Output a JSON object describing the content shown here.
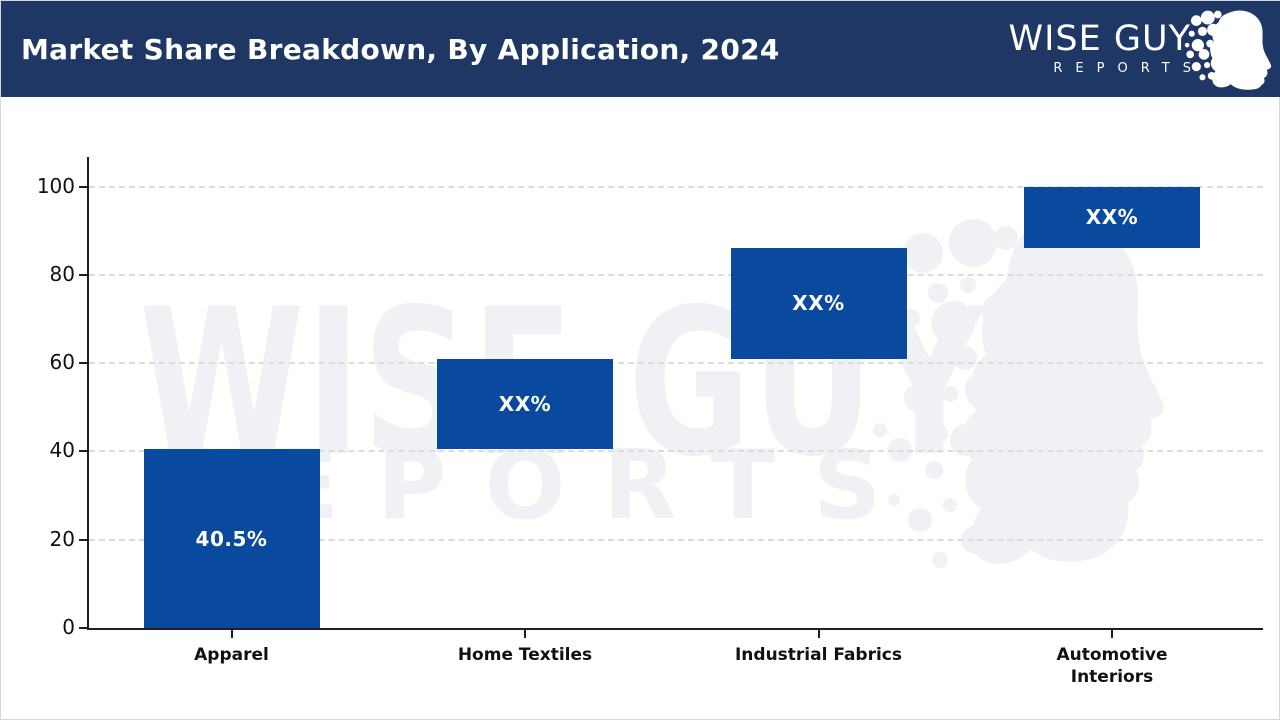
{
  "header": {
    "title": "Market Share Breakdown, By Application, 2024",
    "logo": {
      "brand_line1": "WISE GUY",
      "brand_line2": "REPORTS",
      "head_icon": "dotted-face-profile"
    }
  },
  "watermark": {
    "line1": "WISE GUY",
    "line2": "REPORTS",
    "head_icon": "dotted-face-profile"
  },
  "chart_data": {
    "type": "bar",
    "variant": "waterfall",
    "title": "Market Share Breakdown, By Application, 2024",
    "categories": [
      "Apparel",
      "Home Textiles",
      "Industrial Fabrics",
      "Automotive Interiors"
    ],
    "series": [
      {
        "name": "Market Share (%)",
        "segments": [
          {
            "category": "Apparel",
            "start": 0,
            "end": 40.5,
            "label": "40.5%"
          },
          {
            "category": "Home Textiles",
            "start": 40.5,
            "end": 61,
            "label": "XX%"
          },
          {
            "category": "Industrial Fabrics",
            "start": 61,
            "end": 86,
            "label": "XX%"
          },
          {
            "category": "Automotive Interiors",
            "start": 86,
            "end": 100,
            "label": "XX%"
          }
        ]
      }
    ],
    "xlabel": "",
    "ylabel": "",
    "ylim": [
      0,
      100
    ],
    "yticks": [
      "0",
      "20",
      "40",
      "60",
      "80",
      "100"
    ],
    "grid": "horizontal-dashed",
    "legend_position": "none",
    "bar_color": "#0a4a9e",
    "bar_label_color": "#ffffff"
  },
  "colors": {
    "header_bg": "#1e3765",
    "bar": "#0a4a9e",
    "axis": "#1f1f1f",
    "gridline": "#dcdcdc",
    "watermark": "#f0f1f4",
    "page_bg": "#ffffff"
  }
}
